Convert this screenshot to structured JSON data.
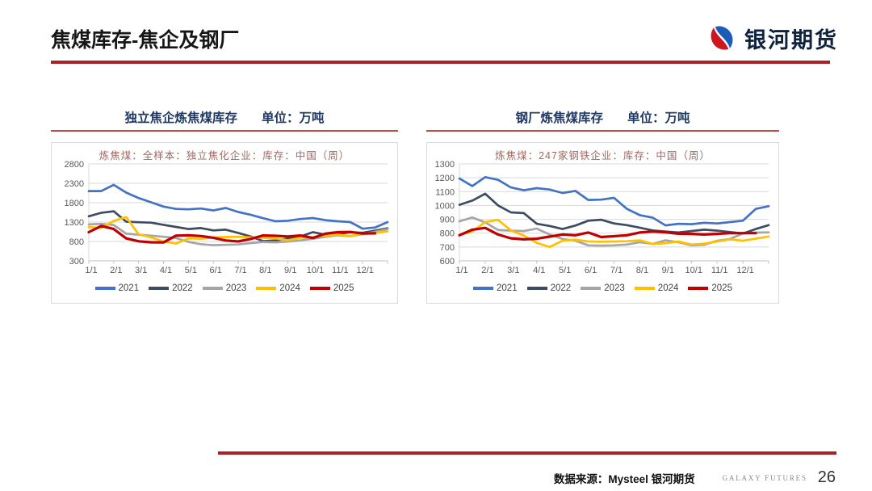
{
  "slide": {
    "title": "焦煤库存-焦企及钢厂",
    "logo_text": "银河期货",
    "footer_source": "数据来源：Mysteel 银河期货",
    "footer_brand": "GALAXY FUTURES",
    "page_number": "26"
  },
  "colors": {
    "accent_red": "#A92025",
    "header_navy": "#1F3864",
    "header_underline": "#BE4B48",
    "series_2021": "#4472C4",
    "series_2022": "#3E4C63",
    "series_2023": "#A6A6A6",
    "series_2024": "#FFC000",
    "series_2025": "#C00000"
  },
  "chart_data": [
    {
      "type": "line",
      "title": "独立焦企炼焦煤库存",
      "unit_label": "单位：万吨",
      "series_label": "炼焦煤：全样本：独立焦化企业：库存：中国（周）",
      "ylim": [
        300,
        2800
      ],
      "yticks": [
        300,
        800,
        1300,
        1800,
        2300,
        2800
      ],
      "xticks": [
        "1/1",
        "2/1",
        "3/1",
        "4/1",
        "5/1",
        "6/1",
        "7/1",
        "8/1",
        "9/1",
        "10/1",
        "11/1",
        "12/1"
      ],
      "grid": true,
      "legend_position": "bottom",
      "series": [
        {
          "name": "2021",
          "color": "#4472C4",
          "values": [
            2100,
            2100,
            2260,
            2060,
            1920,
            1810,
            1700,
            1640,
            1630,
            1650,
            1600,
            1665,
            1560,
            1490,
            1400,
            1320,
            1335,
            1380,
            1405,
            1350,
            1320,
            1300,
            1130,
            1160,
            1300
          ]
        },
        {
          "name": "2022",
          "color": "#3E4C63",
          "values": [
            1450,
            1540,
            1580,
            1310,
            1295,
            1285,
            1230,
            1175,
            1120,
            1145,
            1085,
            1105,
            1020,
            930,
            810,
            825,
            880,
            930,
            1040,
            975,
            995,
            1035,
            1025,
            1080,
            1140
          ]
        },
        {
          "name": "2023",
          "color": "#A6A6A6",
          "values": [
            1240,
            1255,
            1225,
            1000,
            975,
            950,
            920,
            890,
            790,
            730,
            705,
            712,
            722,
            758,
            788,
            778,
            798,
            828,
            868,
            918,
            958,
            938,
            988,
            1048,
            1118
          ]
        },
        {
          "name": "2024",
          "color": "#FFC000",
          "values": [
            1170,
            1150,
            1330,
            1430,
            985,
            905,
            800,
            745,
            880,
            868,
            905,
            915,
            920,
            905,
            895,
            880,
            830,
            895,
            910,
            950,
            975,
            940,
            1000,
            1020,
            1060
          ]
        },
        {
          "name": "2025",
          "color": "#C00000",
          "values": [
            1040,
            1200,
            1120,
            880,
            805,
            780,
            775,
            950,
            960,
            940,
            895,
            825,
            800,
            865,
            955,
            945,
            930,
            955,
            890,
            1000,
            1040,
            1045,
            1005,
            1010
          ]
        }
      ]
    },
    {
      "type": "line",
      "title": "钢厂炼焦煤库存",
      "unit_label": "单位：万吨",
      "series_label": "炼焦煤：247家钢铁企业：库存：中国（周）",
      "ylim": [
        600,
        1300
      ],
      "yticks": [
        600,
        700,
        800,
        900,
        1000,
        1100,
        1200,
        1300
      ],
      "xticks": [
        "1/1",
        "2/1",
        "3/1",
        "4/1",
        "5/1",
        "6/1",
        "7/1",
        "8/1",
        "9/1",
        "10/1",
        "11/1",
        "12/1"
      ],
      "grid": true,
      "legend_position": "bottom",
      "series": [
        {
          "name": "2021",
          "color": "#4472C4",
          "values": [
            1195,
            1140,
            1205,
            1185,
            1130,
            1110,
            1125,
            1115,
            1090,
            1105,
            1040,
            1042,
            1055,
            975,
            930,
            912,
            856,
            868,
            865,
            875,
            870,
            880,
            890,
            975,
            995
          ]
        },
        {
          "name": "2022",
          "color": "#3E4C63",
          "values": [
            1005,
            1035,
            1085,
            1000,
            950,
            945,
            868,
            852,
            830,
            855,
            890,
            897,
            870,
            858,
            840,
            820,
            812,
            805,
            815,
            825,
            818,
            808,
            798,
            830,
            858
          ]
        },
        {
          "name": "2023",
          "color": "#A6A6A6",
          "values": [
            885,
            913,
            878,
            822,
            818,
            815,
            833,
            790,
            758,
            745,
            712,
            710,
            712,
            718,
            735,
            722,
            748,
            735,
            712,
            716,
            745,
            758,
            798,
            804,
            806
          ]
        },
        {
          "name": "2024",
          "color": "#FFC000",
          "values": [
            788,
            812,
            880,
            896,
            820,
            782,
            730,
            700,
            745,
            752,
            740,
            738,
            740,
            742,
            748,
            722,
            728,
            740,
            718,
            724,
            740,
            755,
            745,
            760,
            776
          ]
        },
        {
          "name": "2025",
          "color": "#C00000",
          "values": [
            785,
            825,
            838,
            790,
            763,
            755,
            760,
            775,
            790,
            785,
            805,
            772,
            778,
            785,
            805,
            812,
            806,
            796,
            795,
            790,
            795,
            800,
            800,
            800
          ]
        }
      ]
    }
  ]
}
